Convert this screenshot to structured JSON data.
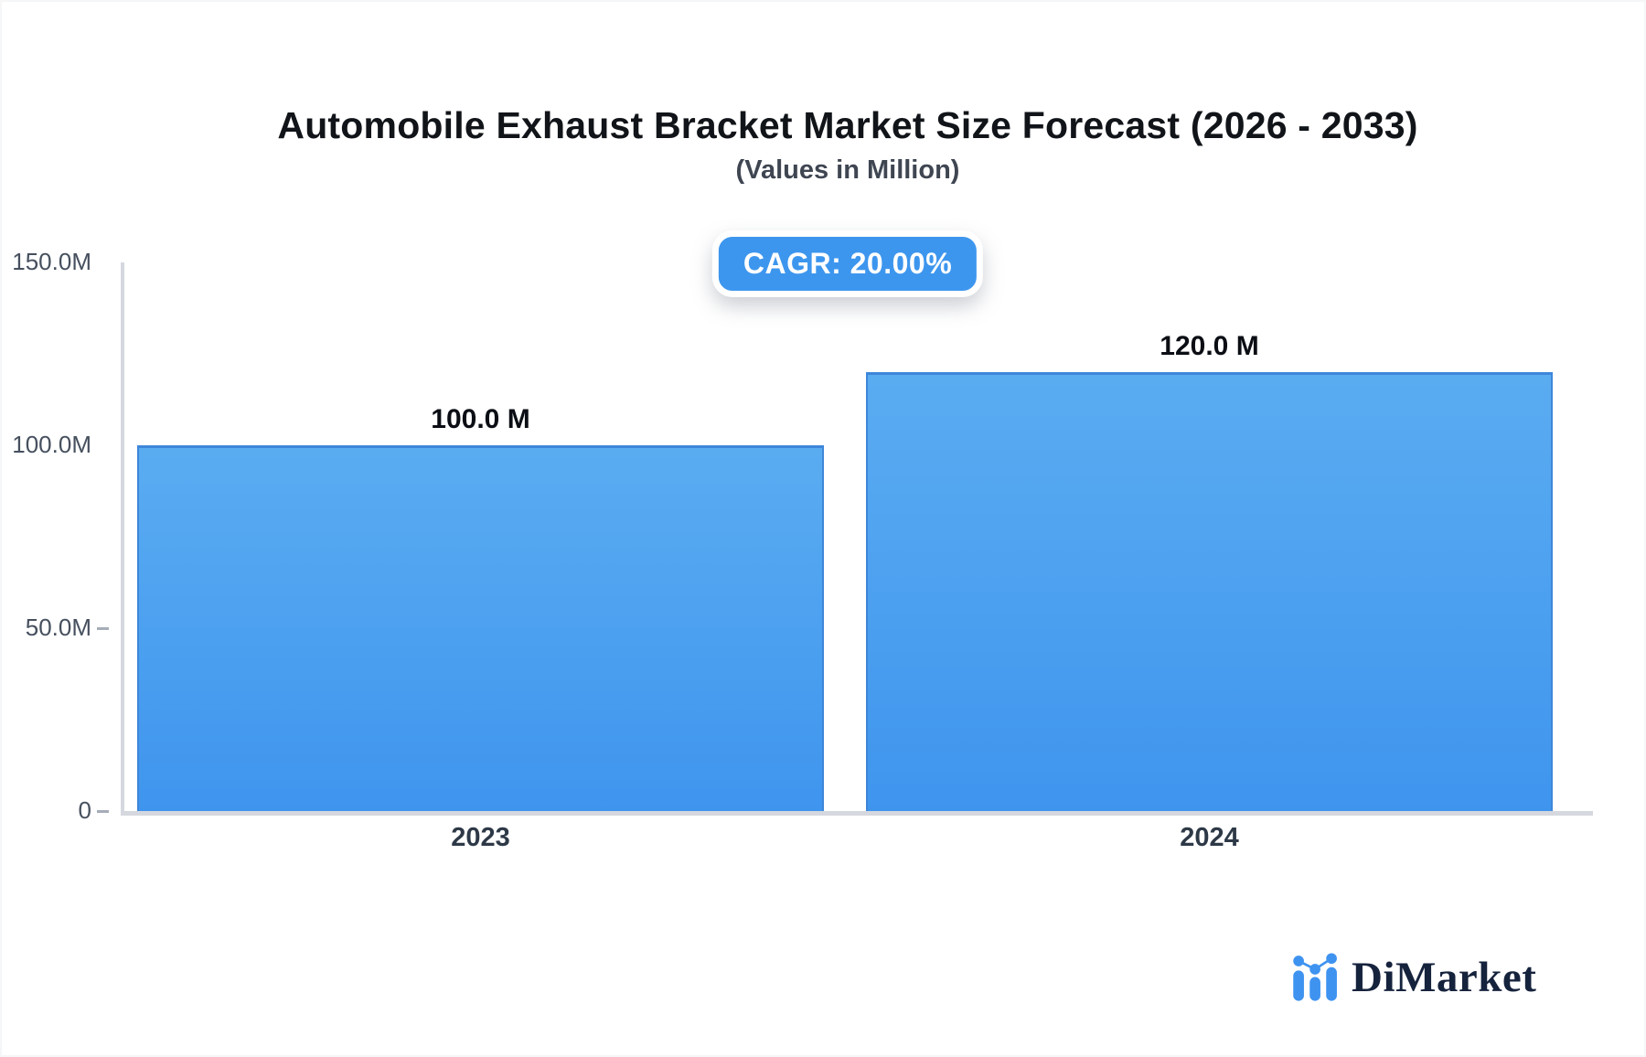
{
  "chart_data": {
    "type": "bar",
    "title": "Automobile Exhaust Bracket Market Size Forecast (2026 - 2033)",
    "subtitle": "(Values in Million)",
    "cagr_label": "CAGR: 20.00%",
    "categories": [
      "2023",
      "2024"
    ],
    "values": [
      100.0,
      120.0
    ],
    "value_labels": [
      "100.0 M",
      "120.0 M"
    ],
    "ylabel": "",
    "xlabel": "",
    "ylim": [
      0,
      150
    ],
    "yticks": [
      {
        "label": "150.0M",
        "value": 150,
        "dash": false
      },
      {
        "label": "100.0M",
        "value": 100,
        "dash": false
      },
      {
        "label": "50.0M",
        "value": 50,
        "dash": true
      },
      {
        "label": "0",
        "value": 0,
        "dash": true
      }
    ],
    "grid": false,
    "legend_position": "none",
    "colors": {
      "bar_top": "#5aacf1",
      "bar_bottom": "#3f95ee",
      "bar_border": "#3e86d9",
      "badge_background": "#3d96ee",
      "badge_text": "#ffffff",
      "axis": "#d5d8de"
    }
  },
  "branding": {
    "logo_text": "DiMarket",
    "logo_icon": "bar-chart-trend-icon",
    "logo_text_color": "#16233d",
    "logo_icon_color": "#3f93f0"
  }
}
